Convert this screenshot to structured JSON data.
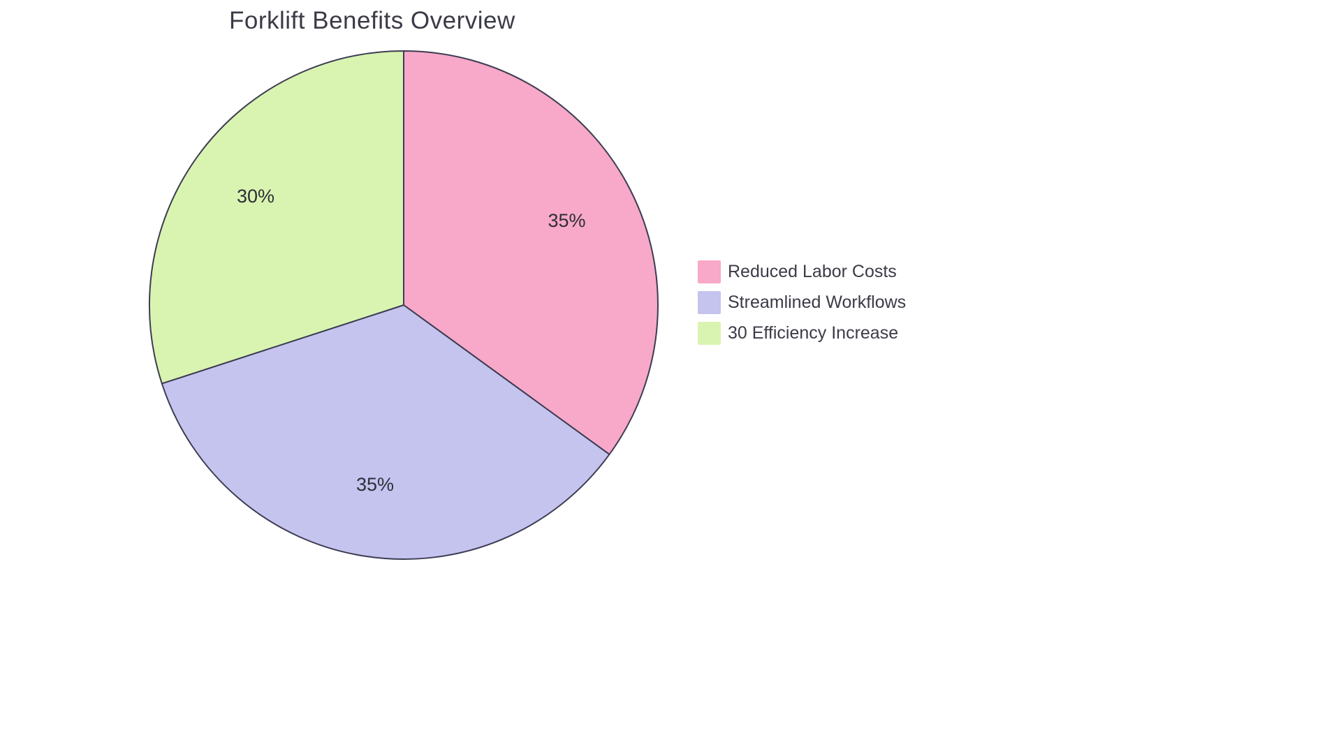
{
  "chart_data": {
    "type": "pie",
    "title": "Forklift Benefits Overview",
    "series": [
      {
        "label": "Reduced Labor Costs",
        "value": 35,
        "display": "35%",
        "color": "#F8A8C8"
      },
      {
        "label": "Streamlined Workflows",
        "value": 35,
        "display": "35%",
        "color": "#C5C4EF"
      },
      {
        "label": "30 Efficiency Increase",
        "value": 30,
        "display": "30%",
        "color": "#D9F4B1"
      }
    ],
    "start_angle_deg": 0,
    "direction": "clockwise",
    "legend_position": "right",
    "stroke_color": "#3C3C52",
    "stroke_width": 2,
    "label_color": "#2E2E38",
    "title_color": "#3B3B47",
    "background": "#FFFFFF"
  }
}
